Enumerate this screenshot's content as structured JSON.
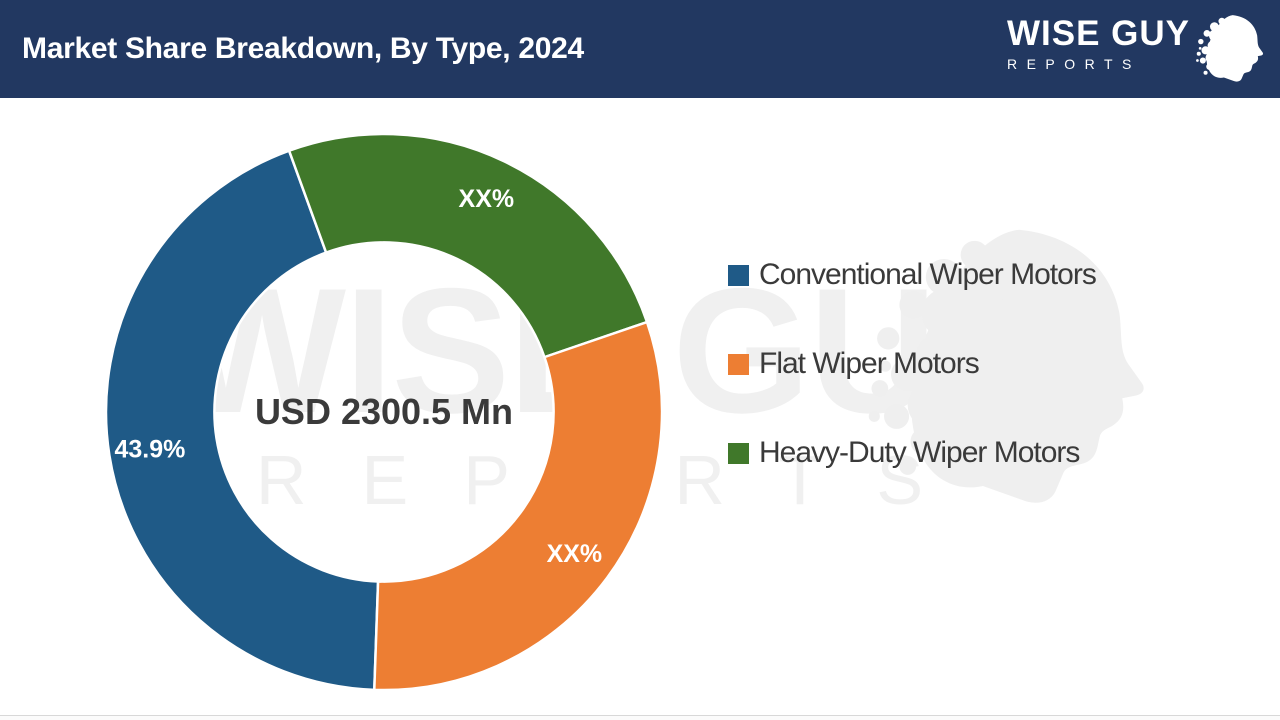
{
  "header": {
    "title": "Market Share Breakdown, By Type, 2024",
    "background_color": "#223861",
    "logo": {
      "line1": "WISE GUY",
      "line2": "REPORTS"
    }
  },
  "watermark": {
    "line1": "WISE GUY",
    "line2": "REPORTS",
    "color": "#f0f0f0"
  },
  "chart_data": {
    "type": "pie",
    "subtype": "donut",
    "title": "Market Share Breakdown, By Type, 2024",
    "center_label": "USD 2300.5 Mn",
    "start_angle_deg": 182,
    "direction": "clockwise",
    "inner_radius_ratio": 0.61,
    "draw_order": [
      0,
      2,
      1
    ],
    "legend_position": "right",
    "segments": [
      {
        "name": "Conventional Wiper Motors",
        "value_pct": 43.9,
        "label": "43.9%",
        "color": "#1f5a87"
      },
      {
        "name": "Flat Wiper Motors",
        "value_pct": 30.8,
        "label": "XX%",
        "color": "#ed7e33"
      },
      {
        "name": "Heavy-Duty Wiper Motors",
        "value_pct": 25.3,
        "label": "XX%",
        "color": "#40782a"
      }
    ]
  }
}
